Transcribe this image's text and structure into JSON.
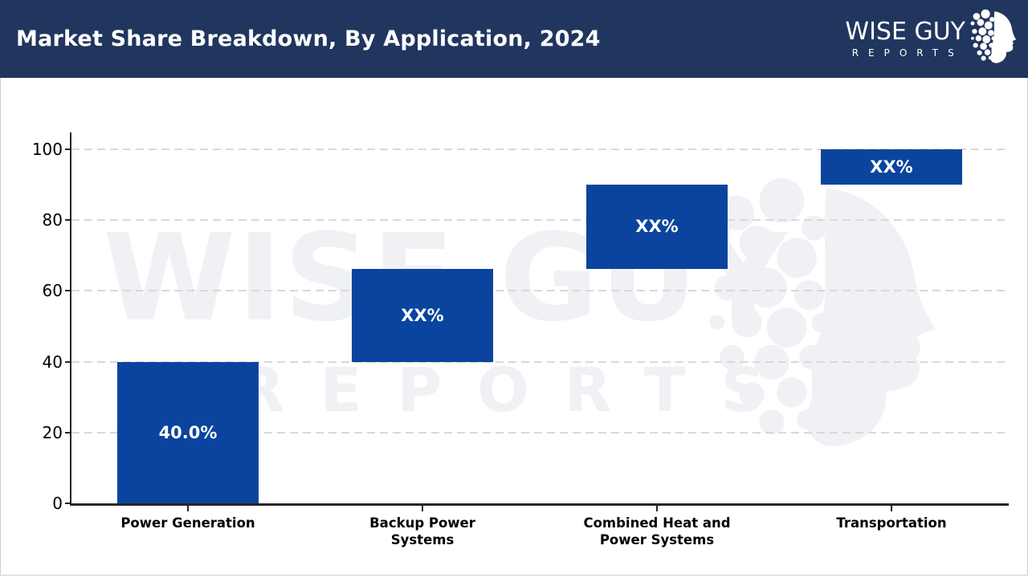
{
  "header": {
    "title": "Market Share Breakdown, By Application, 2024",
    "logo": {
      "line1": "WISE GUY",
      "line2": "REPORTS"
    }
  },
  "watermark": {
    "line1": "WISE GUY",
    "line2": "REPORTS"
  },
  "colors": {
    "header_bg": "#21365e",
    "bar": "#0a449e",
    "bar_label": "#ffffff",
    "axis": "#262626",
    "gridline": "#d9d9d9",
    "watermark": "#f0f1f4"
  },
  "chart_data": {
    "type": "bar",
    "subtype": "waterfall",
    "title": "Market Share Breakdown, By Application, 2024",
    "categories": [
      "Power Generation",
      "Backup Power Systems",
      "Combined Heat and Power Systems",
      "Transportation"
    ],
    "categories_wrapped": [
      "Power Generation",
      "Backup Power\nSystems",
      "Combined Heat and\nPower Systems",
      "Transportation"
    ],
    "series": [
      {
        "name": "Market Share (%)",
        "starts": [
          0,
          40,
          66.3,
          90
        ],
        "ends": [
          40,
          66.3,
          90,
          100
        ],
        "values": [
          40.0,
          26.3,
          23.7,
          10.0
        ]
      }
    ],
    "bar_labels": [
      "40.0%",
      "XX%",
      "XX%",
      "XX%"
    ],
    "xlabel": "",
    "ylabel": "",
    "ylim": [
      0,
      100
    ],
    "yticks": [
      0,
      20,
      40,
      60,
      80,
      100
    ],
    "ytick_labels": [
      "0",
      "20",
      "40",
      "60",
      "80",
      "100"
    ],
    "grid": "horizontal-dashed",
    "legend": "none"
  }
}
